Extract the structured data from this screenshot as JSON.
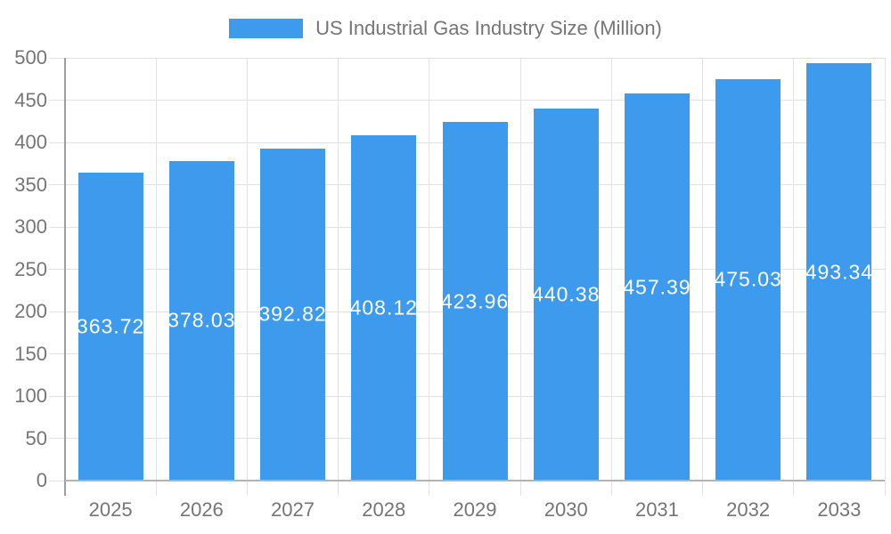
{
  "chart_data": {
    "type": "bar",
    "title": "US Industrial Gas Industry Size (Million)",
    "categories": [
      "2025",
      "2026",
      "2027",
      "2028",
      "2029",
      "2030",
      "2031",
      "2032",
      "2033"
    ],
    "values": [
      363.72,
      378.03,
      392.82,
      408.12,
      423.96,
      440.38,
      457.39,
      475.03,
      493.34
    ],
    "value_labels": [
      "363.72",
      "378.03",
      "392.82",
      "408.12",
      "423.96",
      "440.38",
      "457.39",
      "475.03",
      "493.34"
    ],
    "xlabel": "",
    "ylabel": "",
    "ylim": [
      0,
      500
    ],
    "yticks": [
      0,
      50,
      100,
      150,
      200,
      250,
      300,
      350,
      400,
      450,
      500
    ],
    "grid": true,
    "legend_position": "top-center",
    "value_label_position": "inside-center",
    "colors": {
      "bar": "#3E9AEC",
      "grid": "#E2E2E2",
      "axis_line": "#9E9E9E",
      "baseline": "#B3B3B3",
      "text": "#757575",
      "value_label": "#FFFFFF",
      "background": "#FFFFFF"
    }
  }
}
